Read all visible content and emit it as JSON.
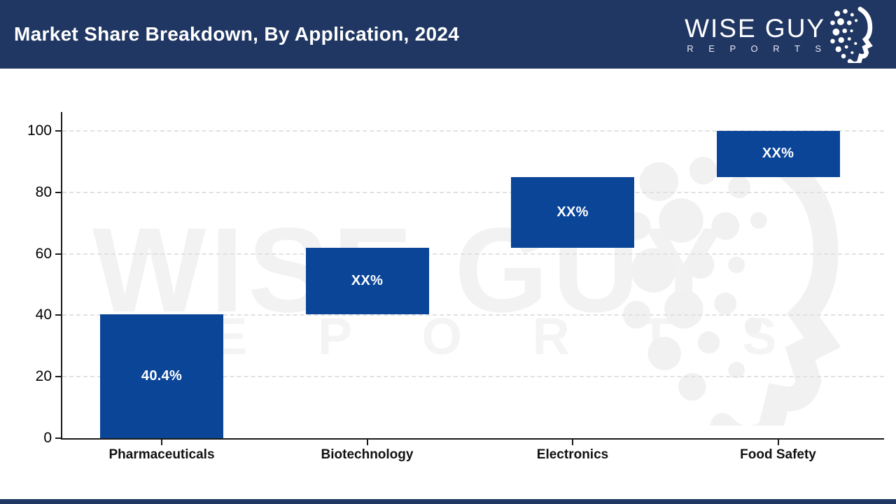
{
  "header": {
    "title": "Market Share Breakdown, By Application, 2024",
    "bg_color": "#203763",
    "brand": {
      "wordmark": "WISE GUY",
      "reports": "R E P O R T S"
    }
  },
  "watermark": {
    "line1": "WISE GUY",
    "line2": "R E P O R T S"
  },
  "chart_data": {
    "type": "bar",
    "subtype": "waterfall-stacked",
    "title": "Market Share Breakdown, By Application, 2024",
    "categories": [
      "Pharmaceuticals",
      "Biotechnology",
      "Electronics",
      "Food Safety"
    ],
    "segments": [
      {
        "category": "Pharmaceuticals",
        "start": 0,
        "end": 40.4,
        "label": "40.4%"
      },
      {
        "category": "Biotechnology",
        "start": 40.4,
        "end": 62,
        "label": "XX%"
      },
      {
        "category": "Electronics",
        "start": 62,
        "end": 85,
        "label": "XX%"
      },
      {
        "category": "Food Safety",
        "start": 85,
        "end": 100,
        "label": "XX%"
      }
    ],
    "xlabel": "",
    "ylabel": "",
    "ylim": [
      0,
      100
    ],
    "yticks": [
      0,
      20,
      40,
      60,
      80,
      100
    ],
    "grid": "horizontal dashed",
    "legend": "none",
    "bar_color": "#0a4598",
    "bar_label_color": "#ffffff",
    "axis_color": "#1a1a1a"
  }
}
